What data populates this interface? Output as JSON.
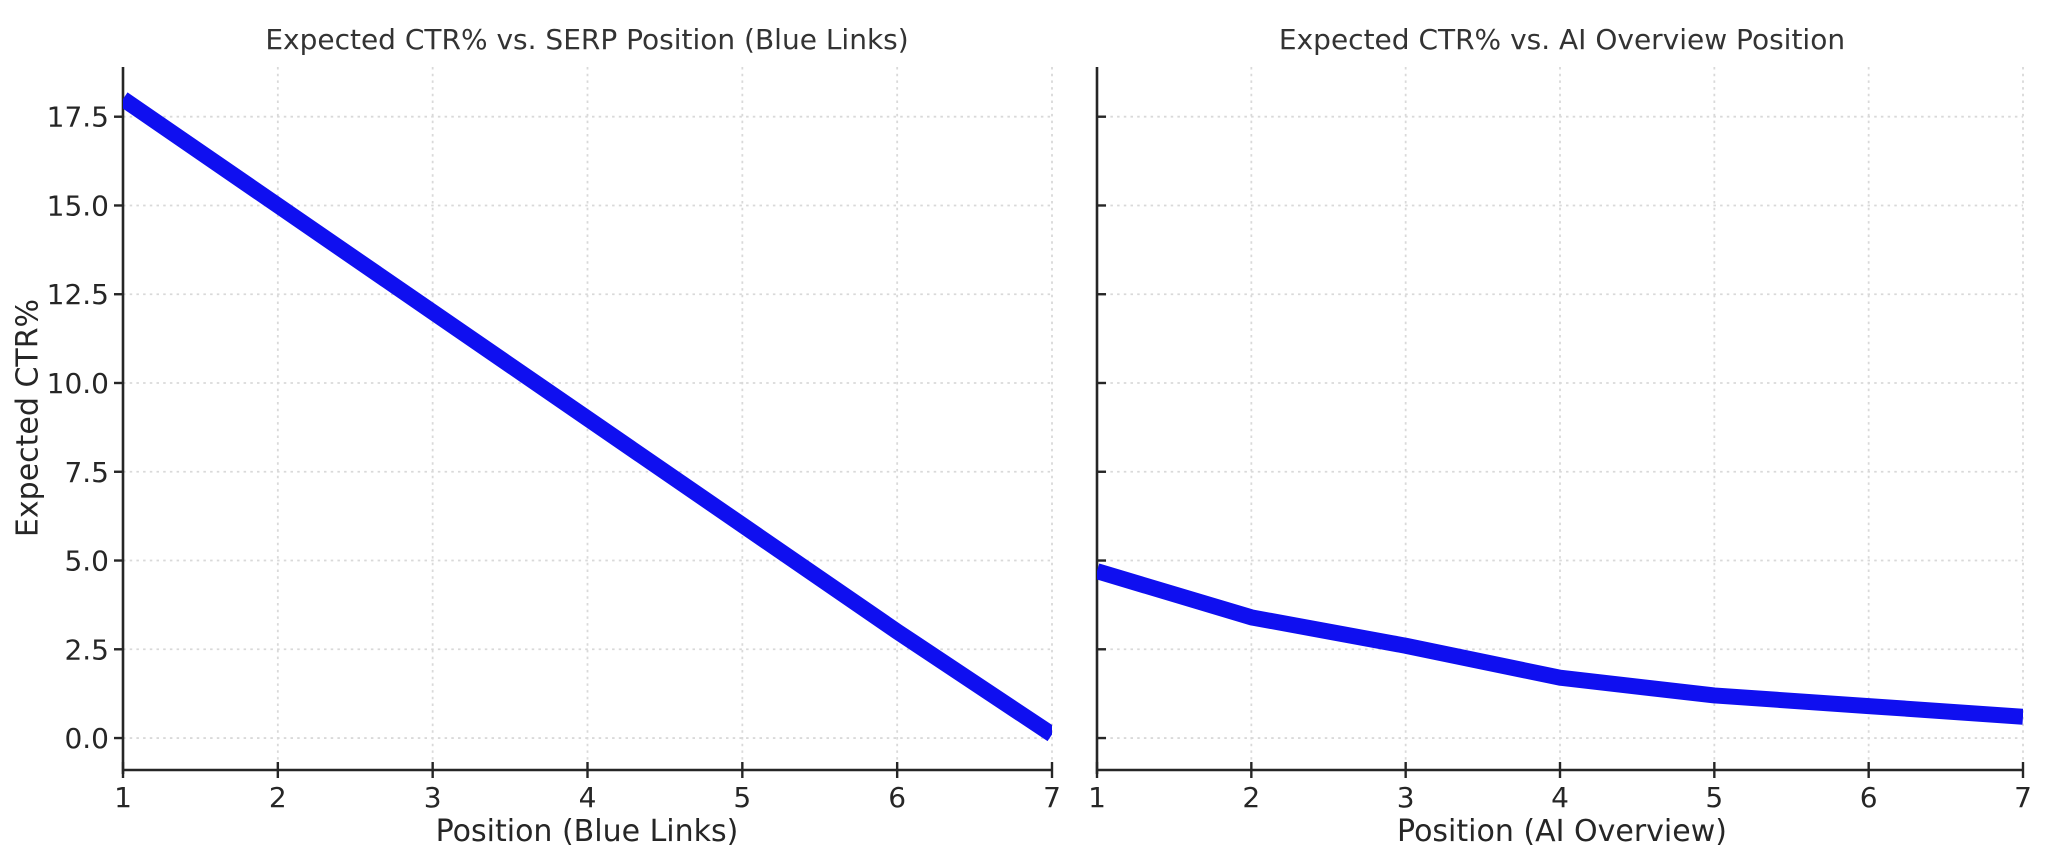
{
  "figure": {
    "ylabel": "Expected CTR%",
    "background": "#ffffff",
    "text_color": "#262626",
    "grid_color": "#d9d9d9",
    "spine_color": "#262626",
    "line_color": "#0f0ff0"
  },
  "chart_data": [
    {
      "type": "line",
      "title": "Expected CTR% vs. SERP Position (Blue Links)",
      "xlabel": "Position (Blue Links)",
      "ylabel": "Expected CTR%",
      "x": [
        1,
        2,
        3,
        4,
        5,
        6,
        7
      ],
      "y": [
        18.0,
        15.0,
        12.0,
        9.0,
        6.0,
        3.0,
        0.1
      ],
      "xticks": [
        1,
        2,
        3,
        4,
        5,
        6,
        7
      ],
      "xtick_labels": [
        "1",
        "2",
        "3",
        "4",
        "5",
        "6",
        "7"
      ],
      "yticks": [
        0,
        2.5,
        5,
        7.5,
        10,
        12.5,
        15,
        17.5
      ],
      "ytick_labels": [
        "0.0",
        "2.5",
        "5.0",
        "7.5",
        "10.0",
        "12.5",
        "15.0",
        "17.5"
      ],
      "show_ytick_labels": true,
      "ytick_direction": "out",
      "xlim": [
        1,
        7
      ],
      "ylim": [
        -0.9,
        18.9
      ],
      "grid": true,
      "legend": "none"
    },
    {
      "type": "line",
      "title": "Expected CTR% vs. AI Overview Position",
      "xlabel": "Position (AI Overview)",
      "ylabel": "",
      "x": [
        1,
        2,
        3,
        4,
        5,
        6,
        7
      ],
      "y": [
        4.7,
        3.4,
        2.6,
        1.7,
        1.2,
        0.9,
        0.6
      ],
      "xticks": [
        1,
        2,
        3,
        4,
        5,
        6,
        7
      ],
      "xtick_labels": [
        "1",
        "2",
        "3",
        "4",
        "5",
        "6",
        "7"
      ],
      "yticks": [
        0,
        2.5,
        5,
        7.5,
        10,
        12.5,
        15,
        17.5
      ],
      "ytick_labels": [],
      "show_ytick_labels": false,
      "ytick_direction": "in",
      "xlim": [
        1,
        7
      ],
      "ylim": [
        -0.9,
        18.9
      ],
      "grid": true,
      "legend": "none"
    }
  ]
}
